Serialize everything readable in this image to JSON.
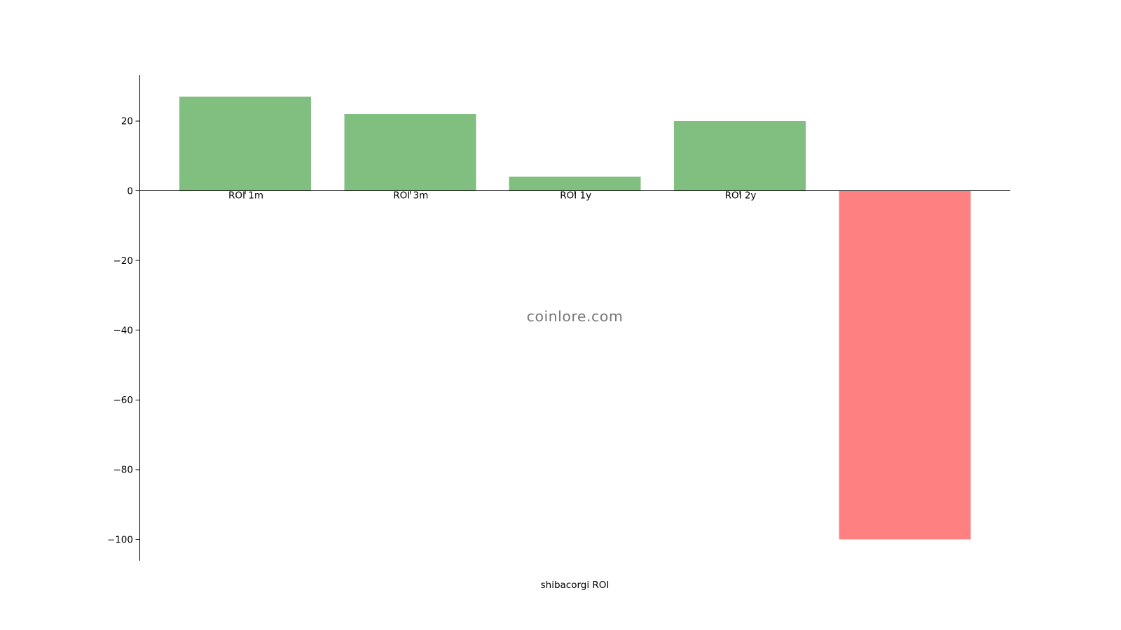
{
  "page": {
    "background_color": "#ffffff"
  },
  "watermark": {
    "text": "coinlore.com",
    "color": "#777777"
  },
  "caption": {
    "text": "shibacorgi ROI"
  },
  "chart_data": {
    "type": "bar",
    "title": "",
    "xlabel": "",
    "ylabel": "",
    "categories": [
      "ROI 1m",
      "ROI 3m",
      "ROI 1y",
      "ROI 2y",
      ""
    ],
    "values": [
      27,
      22,
      4,
      20,
      -100
    ],
    "positive_color": "#80bf80",
    "negative_color": "#ff8080",
    "axis_color": "#000000",
    "tick_label_color": "#000000",
    "yticks": [
      20,
      0,
      -20,
      -40,
      -60,
      -80,
      -100
    ],
    "ytick_labels": [
      "20",
      "0",
      "−20",
      "−40",
      "−60",
      "−80",
      "−100"
    ],
    "ylim": [
      -106.4,
      33.7
    ],
    "grid": false,
    "legend": null,
    "watermark": "coinlore.com",
    "caption": "shibacorgi ROI"
  }
}
